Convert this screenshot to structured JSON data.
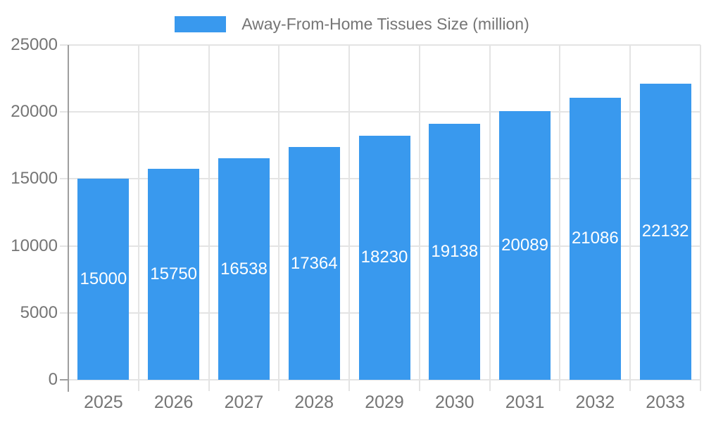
{
  "chart_data": {
    "type": "bar",
    "title": "Away-From-Home Tissues Size (million)",
    "series_name": "Away-From-Home Tissues Size (million)",
    "categories": [
      "2025",
      "2026",
      "2027",
      "2028",
      "2029",
      "2030",
      "2031",
      "2032",
      "2033"
    ],
    "values": [
      15000,
      15750,
      16538,
      17364,
      18230,
      19138,
      20089,
      21086,
      22132
    ],
    "xlabel": "",
    "ylabel": "",
    "ylim": [
      0,
      25000
    ],
    "yticks": [
      0,
      5000,
      10000,
      15000,
      20000,
      25000
    ],
    "grid": true,
    "legend_position": "top-center",
    "value_labels": "inside-center",
    "colors": {
      "bar": "#3999EE",
      "axis": "#9e9e9e",
      "gridline": "#e4e4e4",
      "text": "#757575",
      "bar_label": "#ffffff",
      "background": "#ffffff"
    }
  }
}
